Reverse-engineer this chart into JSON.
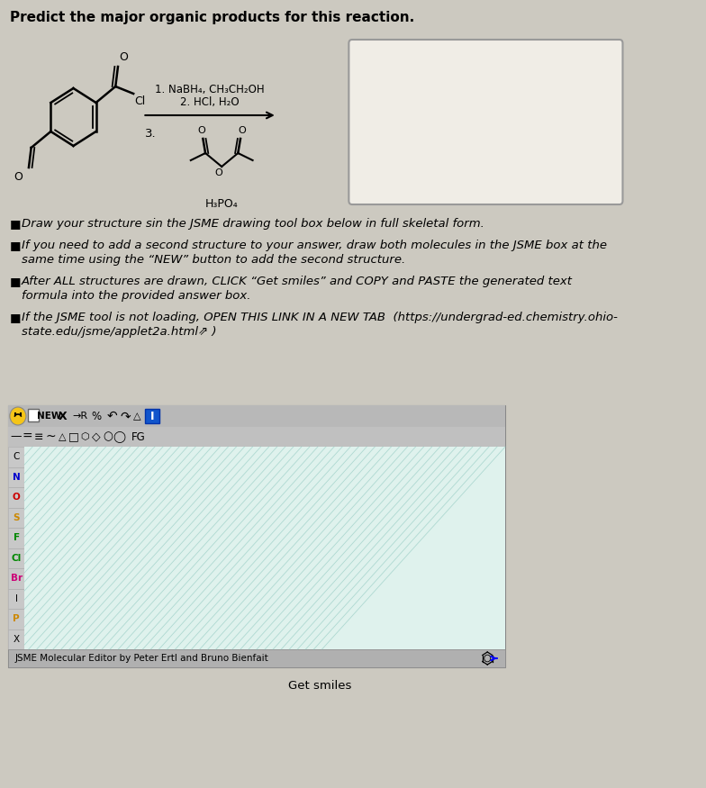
{
  "title": "Predict the major organic products for this reaction.",
  "bg_color": "#ccc9c0",
  "reaction_conditions_1": "1. NaBH₄, CH₃CH₂OH",
  "reaction_conditions_2": "2. HCl, H₂O",
  "reagent_label": "3.",
  "catalyst": "H₃PO₄",
  "inst1": "Draw your structure sin the JSME drawing tool box below in full skeletal form.",
  "inst2a": "If you need to add a second structure to your answer, draw both molecules in the JSME box at the",
  "inst2b": "same time using the “NEW” button to add the second structure.",
  "inst3a": "After ALL structures are drawn, CLICK “Get smiles” and COPY and PASTE the generated text",
  "inst3b": "formula into the provided answer box.",
  "inst4a": "If the JSME tool is not loading, OPEN THIS LINK IN A NEW TAB  (https://undergrad-ed.chemistry.ohio-",
  "inst4b": "state.edu/jsme/applet2a.html⇗ )",
  "jsme_footer": "JSME Molecular Editor by Peter Ertl and Bruno Bienfait",
  "get_smiles_label": "Get smiles",
  "atom_labels": [
    "C",
    "N",
    "O",
    "S",
    "F",
    "Cl",
    "Br",
    "I",
    "P",
    "X"
  ],
  "atom_colors": [
    "#000000",
    "#0000cc",
    "#cc0000",
    "#cc8800",
    "#008800",
    "#008800",
    "#cc0077",
    "#000000",
    "#cc8800",
    "#000000"
  ]
}
